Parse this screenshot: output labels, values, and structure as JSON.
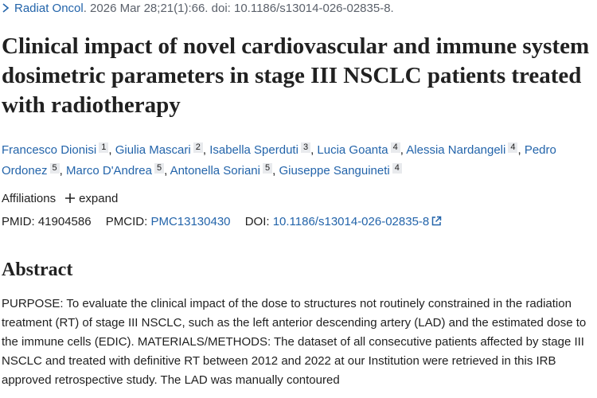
{
  "citation": {
    "journal": "Radiat Oncol",
    "details": ". 2026 Mar 28;21(1):66. doi: 10.1186/s13014-026-02835-8."
  },
  "title": "Clinical impact of novel cardiovascular and immune system dosimetric parameters in stage III NSCLC patients treated with radiotherapy",
  "author_separator": ",",
  "authors": [
    {
      "name": "Francesco Dionisi",
      "affiliation": "1"
    },
    {
      "name": "Giulia Mascari",
      "affiliation": "2"
    },
    {
      "name": "Isabella Sperduti",
      "affiliation": "3"
    },
    {
      "name": "Lucia Goanta",
      "affiliation": "4"
    },
    {
      "name": "Alessia Nardangeli",
      "affiliation": "4"
    },
    {
      "name": "Pedro Ordonez",
      "affiliation": "5"
    },
    {
      "name": "Marco D'Andrea",
      "affiliation": "5"
    },
    {
      "name": "Antonella Soriani",
      "affiliation": "5"
    },
    {
      "name": "Giuseppe Sanguineti",
      "affiliation": "4"
    }
  ],
  "affiliations": {
    "label": "Affiliations",
    "toggle": "expand"
  },
  "identifiers": {
    "pmid_label": "PMID:",
    "pmid": "41904586",
    "pmcid_label": "PMCID:",
    "pmcid": "PMC13130430",
    "doi_label": "DOI:",
    "doi": "10.1186/s13014-026-02835-8"
  },
  "abstract": {
    "heading": "Abstract",
    "text": "PURPOSE: To evaluate the clinical impact of the dose to structures not routinely constrained in the radiation treatment (RT) of stage III NSCLC, such as the left anterior descending artery (LAD) and the estimated dose to the immune cells (EDIC). MATERIALS/METHODS: The dataset of all consecutive patients affected by stage III NSCLC and treated with definitive RT between 2012 and 2022 at our Institution were retrieved in this IRB approved retrospective study. The LAD was manually contoured"
  }
}
